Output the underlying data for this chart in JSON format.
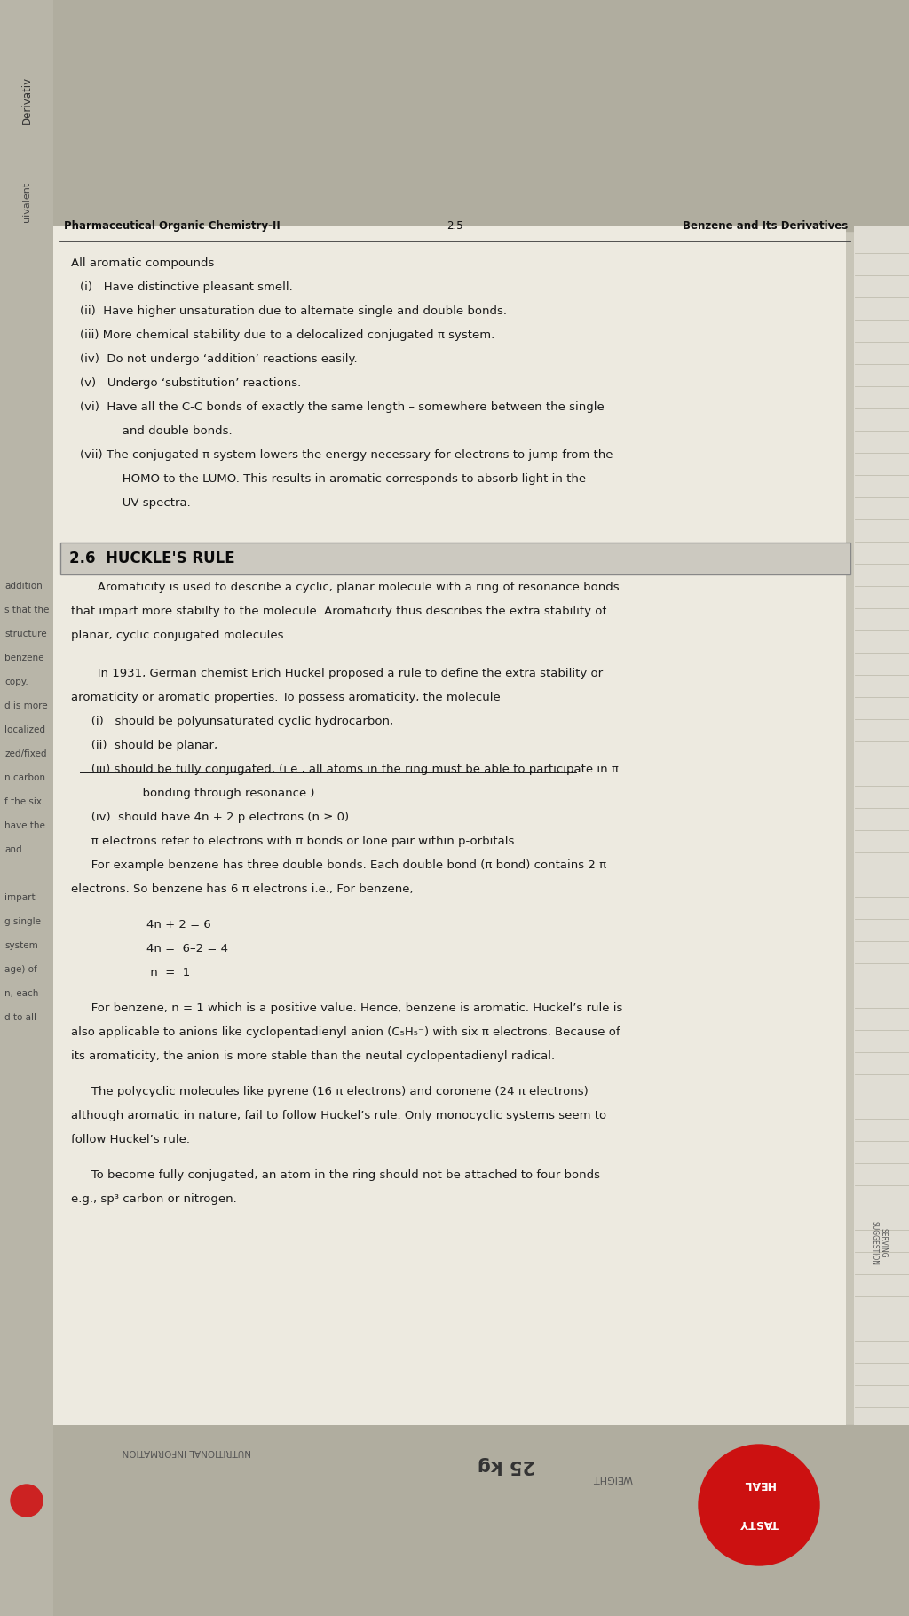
{
  "bg_color": "#c8c5b8",
  "page_bg": "#eceae0",
  "header_line_color": "#555555",
  "header_left": "Pharmaceutical Organic Chemistry-II",
  "header_center": "2.5",
  "header_right": "Benzene and Its Derivatives",
  "section_header": "2.6  HUCKLE'S RULE",
  "section_header_bg": "#ccc9c0",
  "left_margin_words": [
    "addition",
    "s that the",
    "structure",
    "benzene",
    "copy.",
    "d is more",
    "localized",
    "zed/fixed",
    "n carbon",
    "f the six",
    "have the",
    "and",
    "",
    "impart",
    "g single",
    "system",
    "age) of",
    "n, each",
    "d to all"
  ],
  "font_size_body": 9.5,
  "font_size_header": 9.0,
  "font_size_section": 12.0
}
